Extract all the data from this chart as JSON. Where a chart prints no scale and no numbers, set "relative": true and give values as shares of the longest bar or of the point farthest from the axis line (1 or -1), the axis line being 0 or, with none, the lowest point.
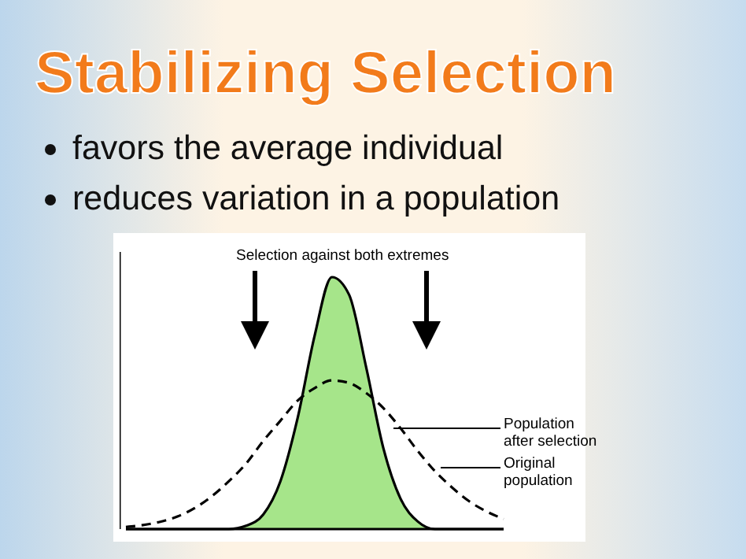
{
  "chart_data": {
    "type": "line",
    "title": "Stabilizing Selection",
    "relative": true,
    "categories": [
      null,
      null,
      null,
      null,
      null,
      null,
      null,
      null,
      null,
      null,
      null,
      null,
      null,
      null,
      null,
      null,
      null,
      null,
      null,
      null,
      null,
      null,
      null
    ],
    "series": [
      {
        "type": "area",
        "color": "#a6e58a",
        "values": [
          0,
          0,
          0,
          0,
          0,
          0,
          0,
          0.013,
          0.058,
          0.19,
          0.44,
          0.77,
          1,
          0.93,
          0.64,
          0.32,
          0.12,
          0.03,
          0,
          0,
          0,
          0,
          0
        ]
      },
      {
        "line_style": "dashed",
        "color": "#000000",
        "values": [
          0.008,
          0.016,
          0.029,
          0.05,
          0.083,
          0.13,
          0.19,
          0.26,
          0.35,
          0.43,
          0.51,
          0.56,
          0.59,
          0.58,
          0.54,
          0.48,
          0.4,
          0.31,
          0.23,
          0.165,
          0.11,
          0.07,
          0.04
        ]
      }
    ],
    "annotations": [
      "favors the average individual",
      "reduces variation in a population",
      "Selection against both extremes",
      "Population after selection",
      "Original population"
    ]
  }
}
